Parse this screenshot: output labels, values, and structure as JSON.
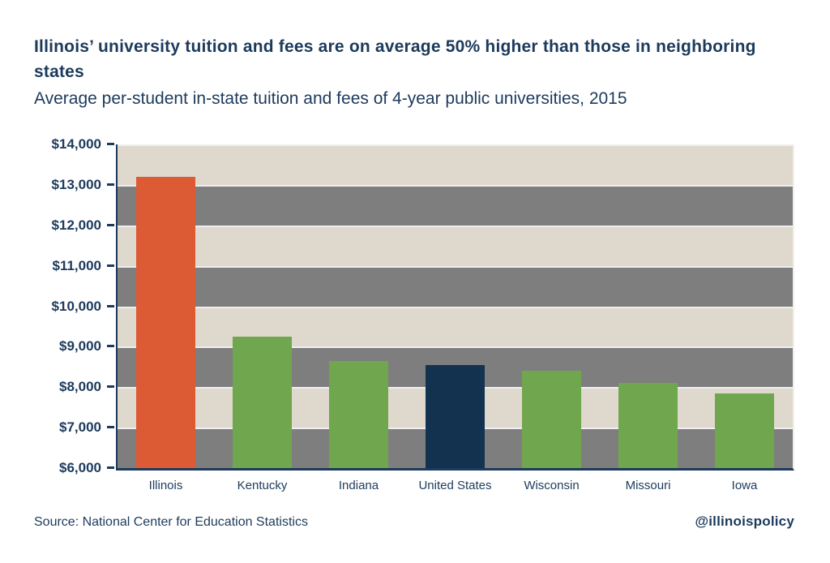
{
  "header": {
    "title": "Illinois’ university tuition and fees are on average 50% higher than those in neighboring states",
    "subtitle": "Average per-student in-state tuition and fees of 4-year public universities, 2015"
  },
  "footer": {
    "source": "Source: National Center for Education Statistics",
    "handle": "@illinoispolicy"
  },
  "chart_data": {
    "type": "bar",
    "title": "Illinois’ university tuition and fees are on average 50% higher than those in neighboring states",
    "subtitle": "Average per-student in-state tuition and fees of 4-year public universities, 2015",
    "categories": [
      "Illinois",
      "Kentucky",
      "Indiana",
      "United States",
      "Wisconsin",
      "Missouri",
      "Iowa"
    ],
    "values": [
      13200,
      9250,
      8650,
      8550,
      8400,
      8100,
      7850
    ],
    "bar_colors": [
      "#DC5B35",
      "#70A64E",
      "#70A64E",
      "#12324F",
      "#70A64E",
      "#70A64E",
      "#70A64E"
    ],
    "xlabel": "",
    "ylabel": "",
    "ylim": [
      6000,
      14000
    ],
    "ytick_step": 1000,
    "ytick_labels": [
      "$14,000",
      "$13,000",
      "$12,000",
      "$11,000",
      "$10,000",
      "$9,000",
      "$8,000",
      "$7,000",
      "$6,000"
    ],
    "grid": "horizontal-bands",
    "legend_position": "none",
    "style": {
      "band_colors": [
        "#DFD8CC",
        "#7E7E7E"
      ],
      "gridline_color": "#F0EEF0",
      "axis_color": "#1C3A5C",
      "text_color": "#1C3A5C",
      "highlight_color": "#DC5B35",
      "neighbor_color": "#70A64E",
      "us_color": "#12324F"
    }
  }
}
